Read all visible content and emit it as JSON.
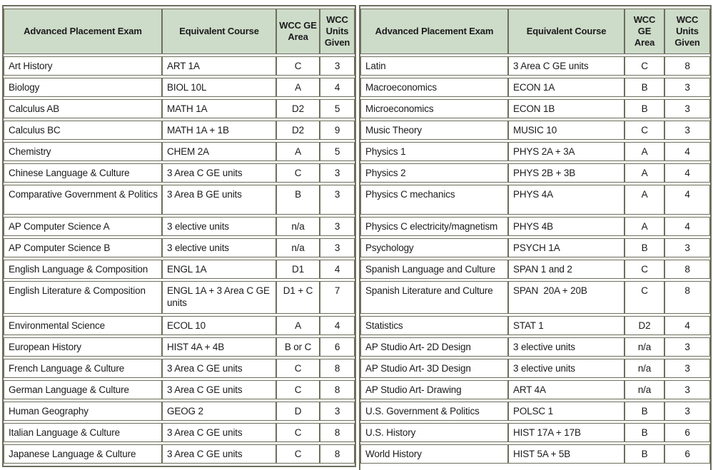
{
  "colors": {
    "border": "#6e6e5c",
    "header_bg": "#cddbc9",
    "text": "#1b1b1b"
  },
  "left_table": {
    "headers": [
      "Advanced Placement Exam",
      "Equivalent Course",
      "WCC GE Area",
      "WCC Units Given"
    ],
    "rows": [
      [
        "Art History",
        "ART 1A",
        "C",
        "3"
      ],
      [
        "Biology",
        "BIOL 10L",
        "A",
        "4"
      ],
      [
        "Calculus AB",
        "MATH 1A",
        "D2",
        "5"
      ],
      [
        "Calculus BC",
        "MATH 1A + 1B",
        "D2",
        "9"
      ],
      [
        "Chemistry",
        "CHEM 2A",
        "A",
        "5"
      ],
      [
        "Chinese Language & Culture",
        "3 Area C GE units",
        "C",
        "3"
      ],
      [
        "Comparative Government & Politics",
        "3 Area B GE units",
        "B",
        "3"
      ],
      [
        "AP Computer Science A",
        "3 elective units",
        "n/a",
        "3"
      ],
      [
        "AP Computer Science B",
        "3 elective units",
        "n/a",
        "3"
      ],
      [
        "English Language & Composition",
        "ENGL 1A",
        "D1",
        "4"
      ],
      [
        "English Literature & Composition",
        "ENGL 1A + 3 Area C GE units",
        "D1 + C",
        "7"
      ],
      [
        "Environmental Science",
        "ECOL 10",
        "A",
        "4"
      ],
      [
        "European History",
        "HIST 4A + 4B",
        "B or C",
        "6"
      ],
      [
        "French Language & Culture",
        "3 Area C GE units",
        "C",
        "8"
      ],
      [
        "German Language & Culture",
        "3 Area C GE units",
        "C",
        "8"
      ],
      [
        "Human Geography",
        "GEOG 2",
        "D",
        "3"
      ],
      [
        "Italian Language & Culture",
        "3 Area C GE units",
        "C",
        "8"
      ],
      [
        "Japanese Language & Culture",
        "3 Area C GE units",
        "C",
        "8"
      ]
    ]
  },
  "right_table": {
    "headers": [
      "Advanced Placement Exam",
      "Equivalent Course",
      "WCC GE Area",
      "WCC Units Given"
    ],
    "rows": [
      [
        "Latin",
        "3 Area C GE units",
        "C",
        "8"
      ],
      [
        "Macroeconomics",
        "ECON 1A",
        "B",
        "3"
      ],
      [
        "Microeconomics",
        "ECON 1B",
        "B",
        "3"
      ],
      [
        "Music Theory",
        "MUSIC 10",
        "C",
        "3"
      ],
      [
        "Physics 1",
        "PHYS 2A + 3A",
        "A",
        "4"
      ],
      [
        "Physics 2",
        "PHYS 2B + 3B",
        "A",
        "4"
      ],
      [
        "Physics C mechanics",
        "PHYS 4A",
        "A",
        "4"
      ],
      [
        "Physics C electricity/magnetism",
        "PHYS 4B",
        "A",
        "4"
      ],
      [
        "Psychology",
        "PSYCH 1A",
        "B",
        "3"
      ],
      [
        "Spanish Language and Culture",
        "SPAN 1 and 2",
        "C",
        "8"
      ],
      [
        "Spanish Literature and Culture",
        "SPAN  20A + 20B",
        "C",
        "8"
      ],
      [
        "Statistics",
        "STAT 1",
        "D2",
        "4"
      ],
      [
        "AP Studio Art- 2D Design",
        "3 elective units",
        "n/a",
        "3"
      ],
      [
        "AP Studio Art- 3D Design",
        "3 elective units",
        "n/a",
        "3"
      ],
      [
        "AP Studio Art- Drawing",
        "ART 4A",
        "n/a",
        "3"
      ],
      [
        "U.S. Government & Politics",
        "POLSC 1",
        "B",
        "3"
      ],
      [
        "U.S. History",
        "HIST 17A + 17B",
        "B",
        "6"
      ],
      [
        "World History",
        "HIST 5A + 5B",
        "B",
        "6"
      ]
    ]
  }
}
